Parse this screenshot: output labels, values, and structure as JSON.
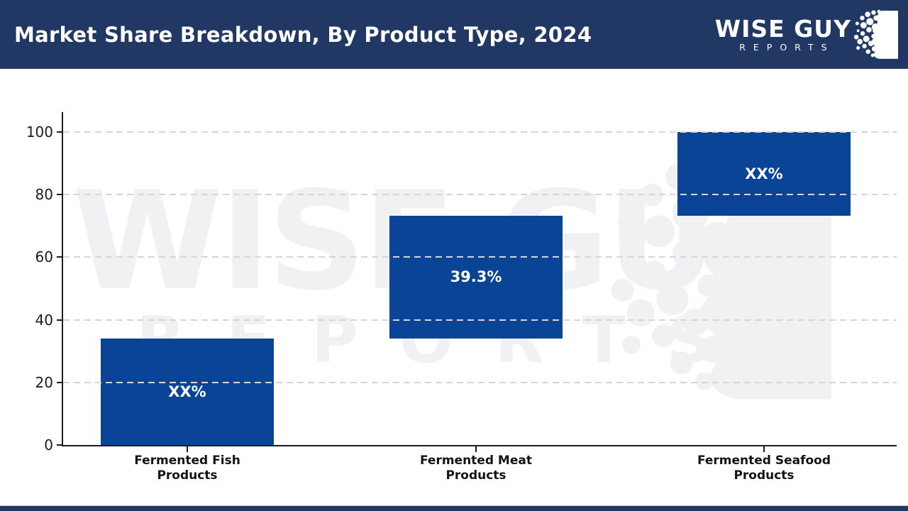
{
  "header": {
    "title": "Market Share Breakdown, By Product Type, 2024",
    "bg_color": "#213864",
    "logo": {
      "line1": "WISE GUY",
      "line2": "REPORTS",
      "face_icon": "dotted-head-profile"
    }
  },
  "watermark": {
    "line1": "WISE GUY",
    "line2": "REPORTS",
    "color": "#f1f1f4"
  },
  "footer": {
    "bg_color": "#213864"
  },
  "chart_data": {
    "type": "bar",
    "subtype": "floating-segment-waterfall",
    "title": "Market Share Breakdown, By Product Type, 2024",
    "xlabel": "",
    "ylabel": "",
    "ylim": [
      0,
      105
    ],
    "yticks": [
      0,
      20,
      40,
      60,
      80,
      100
    ],
    "grid": "horizontal-dashed-over-bars",
    "legend": "none",
    "bar_color": "#0a4496",
    "value_label_color": "#ffffff",
    "categories": [
      [
        "Fermented Fish",
        "Products"
      ],
      [
        "Fermented Meat",
        "Products"
      ],
      [
        "Fermented Seafood",
        "Products"
      ]
    ],
    "segments": [
      {
        "category": "Fermented Fish Products",
        "start": 0,
        "end": 34,
        "height": 34,
        "label": "XX%"
      },
      {
        "category": "Fermented Meat Products",
        "start": 34,
        "end": 73.3,
        "height": 39.3,
        "label": "39.3%"
      },
      {
        "category": "Fermented Seafood Products",
        "start": 73.3,
        "end": 100,
        "height": 26.7,
        "label": "XX%"
      }
    ]
  }
}
